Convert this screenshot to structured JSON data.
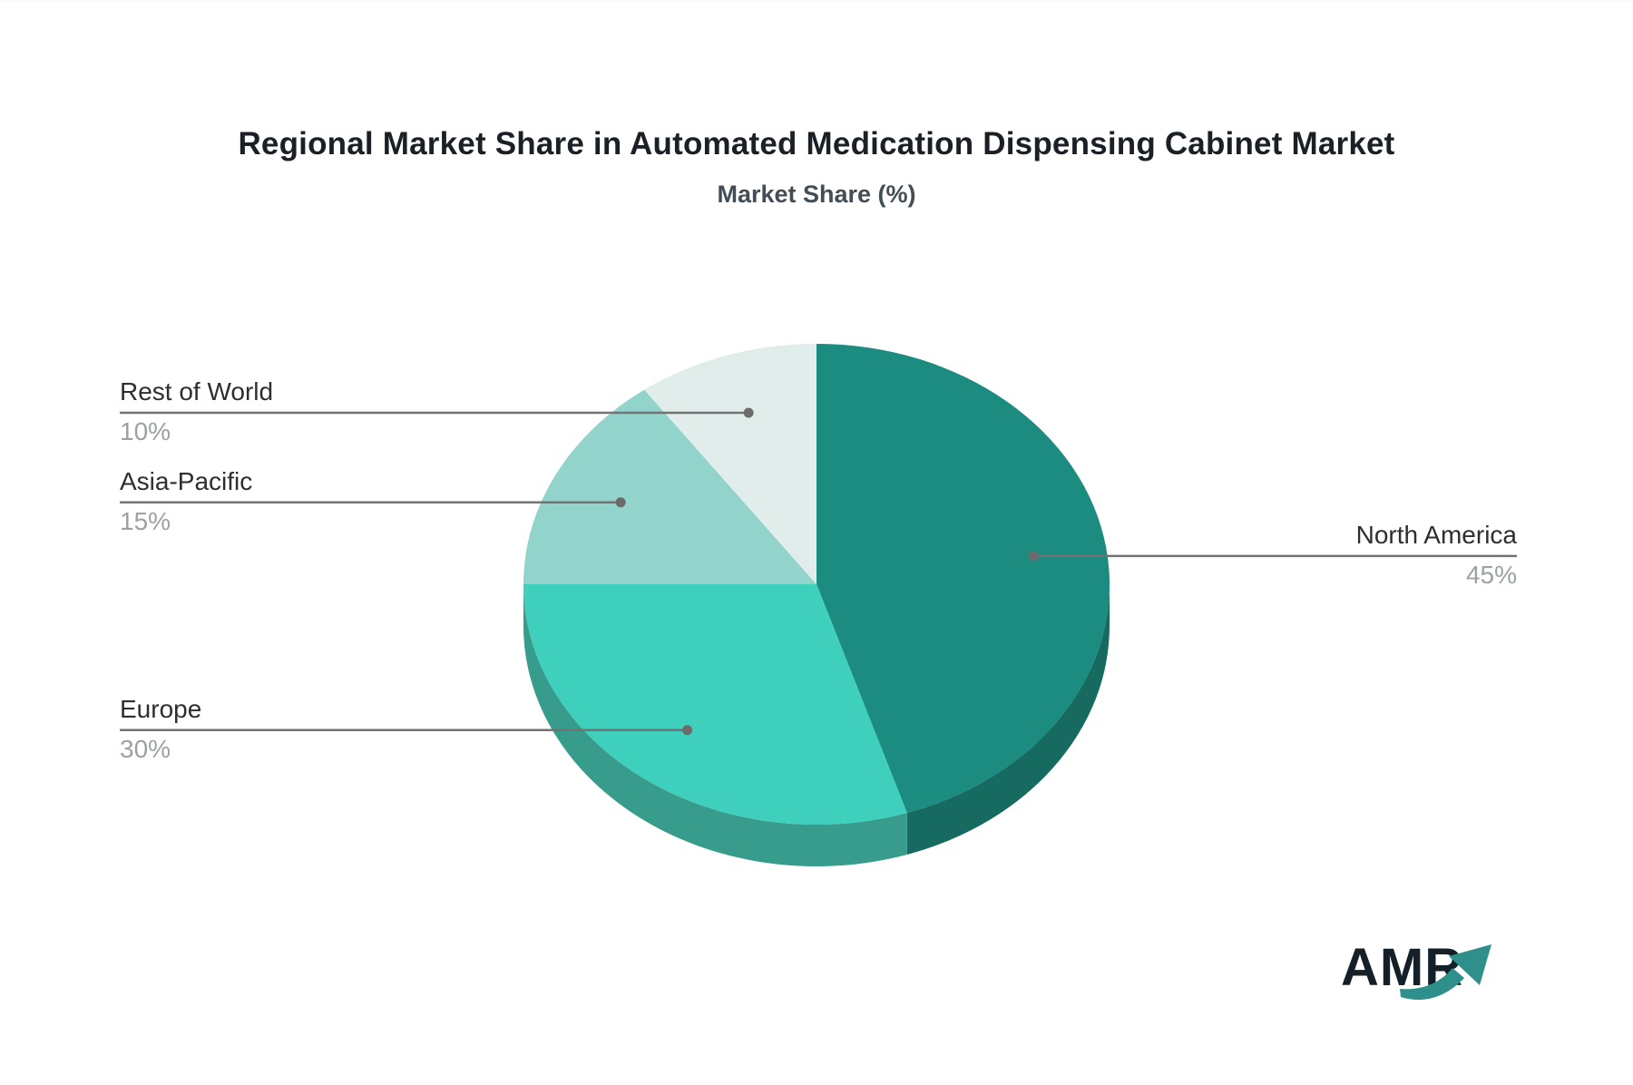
{
  "title": "Regional Market Share in Automated Medication Dispensing Cabinet Market",
  "subtitle": "Market Share (%)",
  "chart_data": {
    "type": "pie",
    "style": "3d",
    "unit": "%",
    "start": "12-o'clock",
    "direction": "clockwise",
    "legend_position": "callout-labels",
    "slices": [
      {
        "label": "North America",
        "value": 45,
        "display": "45%",
        "color": "#1c8c80",
        "side_color": "#166a60",
        "callout_side": "right"
      },
      {
        "label": "Europe",
        "value": 30,
        "display": "30%",
        "color": "#3ecfbd",
        "side_color": "#389c8d",
        "callout_side": "left"
      },
      {
        "label": "Asia-Pacific",
        "value": 15,
        "display": "15%",
        "color": "#92d4cc",
        "side_color": "#2e9a8d",
        "callout_side": "left"
      },
      {
        "label": "Rest of World",
        "value": 10,
        "display": "10%",
        "color": "#e0edea",
        "side_color": "#b8ccc9",
        "callout_side": "left"
      }
    ]
  },
  "callout_style": {
    "line_color": "#737373",
    "dot_color": "#6b6b6b",
    "label_color": "#2e2e2e",
    "value_color": "#9ba1a5"
  },
  "logo": {
    "text": "AMR",
    "text_color": "#141f27",
    "arrow_color": "#2e8f8b"
  }
}
